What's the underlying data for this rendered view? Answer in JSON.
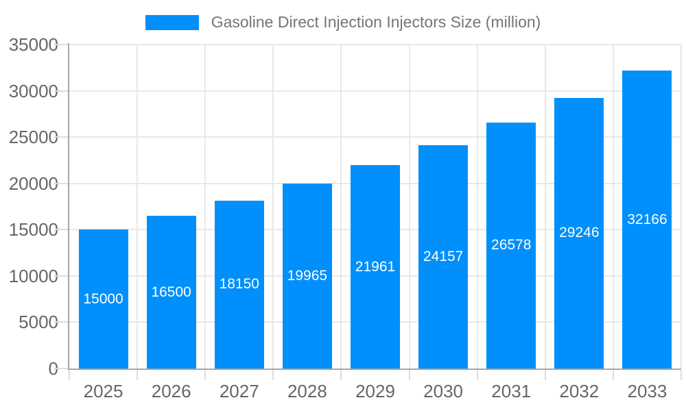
{
  "legend": {
    "position": "top",
    "items": [
      {
        "label": "Gasoline Direct Injection Injectors Size (million)",
        "color": "#008FFB"
      }
    ]
  },
  "colors": {
    "bar": "#008FFB",
    "axis_line": "#a6a6a6",
    "gridline": "#e8e8e8",
    "tick": "#dddddd",
    "tick_label": "#666666",
    "legend_text": "#757575",
    "data_label": "#ffffff",
    "background": "#ffffff"
  },
  "chart_data": {
    "type": "bar",
    "title": "Gasoline Direct Injection Injectors Size (million)",
    "categories": [
      "2025",
      "2026",
      "2027",
      "2028",
      "2029",
      "2030",
      "2031",
      "2032",
      "2033"
    ],
    "values": [
      15000,
      16500,
      18150,
      19965,
      21961,
      24157,
      26578,
      29246,
      32166
    ],
    "series": [
      {
        "name": "Gasoline Direct Injection Injectors Size (million)",
        "values": [
          15000,
          16500,
          18150,
          19965,
          21961,
          24157,
          26578,
          29246,
          32166
        ]
      }
    ],
    "data_labels_shown": true,
    "data_label_position": "inside-center",
    "xlabel": "",
    "ylabel": "",
    "ylim": [
      0,
      35000
    ],
    "y_ticks": [
      0,
      5000,
      10000,
      15000,
      20000,
      25000,
      30000,
      35000
    ],
    "grid": true,
    "legend_position": "top",
    "bar_color": "#008FFB"
  }
}
